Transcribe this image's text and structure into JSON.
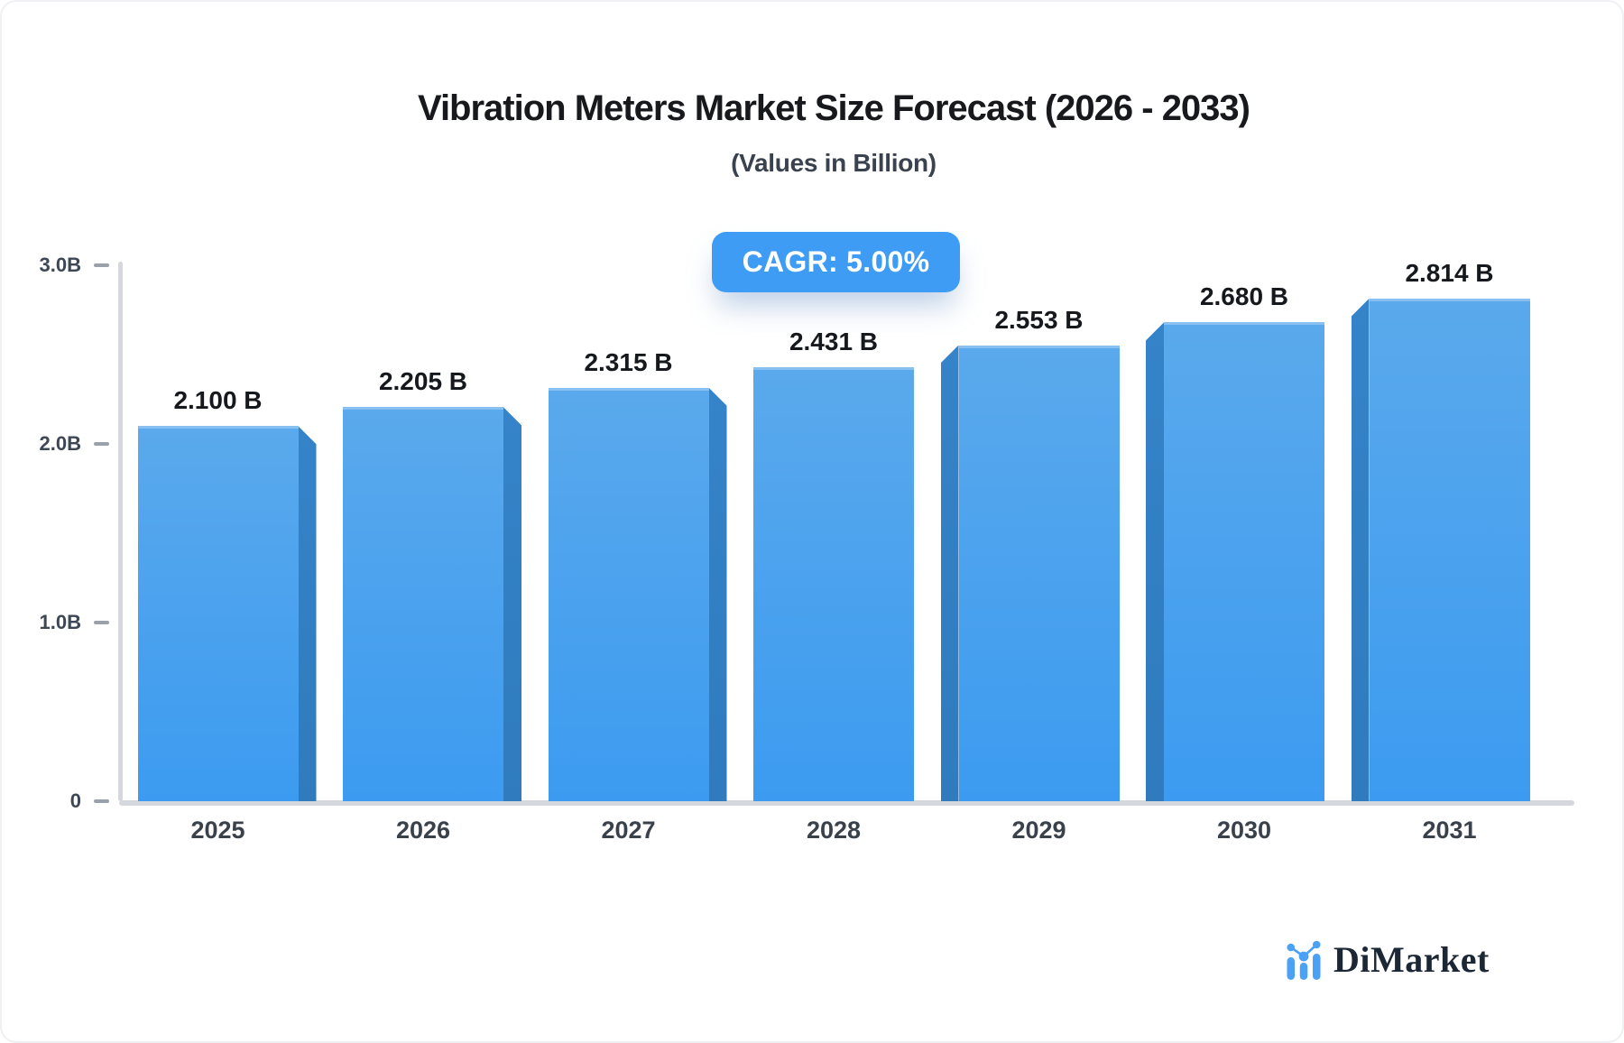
{
  "chart_data": {
    "type": "bar",
    "title": "Vibration Meters Market Size Forecast (2026 - 2033)",
    "subtitle": "(Values in Billion)",
    "categories": [
      "2025",
      "2026",
      "2027",
      "2028",
      "2029",
      "2030",
      "2031"
    ],
    "values": [
      2.1,
      2.205,
      2.315,
      2.431,
      2.553,
      2.68,
      2.814
    ],
    "value_labels": [
      "2.100 B",
      "2.205 B",
      "2.315 B",
      "2.431 B",
      "2.553 B",
      "2.680 B",
      "2.814 B"
    ],
    "yticks": [
      {
        "value": 0,
        "label": "0"
      },
      {
        "value": 1,
        "label": "1.0B"
      },
      {
        "value": 2,
        "label": "2.0B"
      },
      {
        "value": 3,
        "label": "3.0B"
      }
    ],
    "ylim": [
      0,
      3
    ],
    "xlabel": "",
    "ylabel": "",
    "grid": false,
    "legend": false,
    "bar_style": "3d-extruded-toward-center",
    "annotations": [
      "CAGR: 5.00%"
    ],
    "colors": {
      "bar_face_top": "#5AA9EC",
      "bar_face_bottom": "#3C9BF0",
      "bar_side": "#2F7BBD",
      "bar_side_top": "#3583C9",
      "badge_bg": "#3E9CF4",
      "badge_text": "#FFFFFF",
      "axis": "#D4D7DD",
      "tick": "#9BA1AB",
      "title_text": "#17191C",
      "subtitle_text": "#3A424F",
      "value_text": "#15181C",
      "category_text": "#39414B",
      "brand_navy": "#1C2736",
      "brand_blue": "#4BA1F6"
    }
  },
  "footer": {
    "brand": "DiMarket"
  }
}
